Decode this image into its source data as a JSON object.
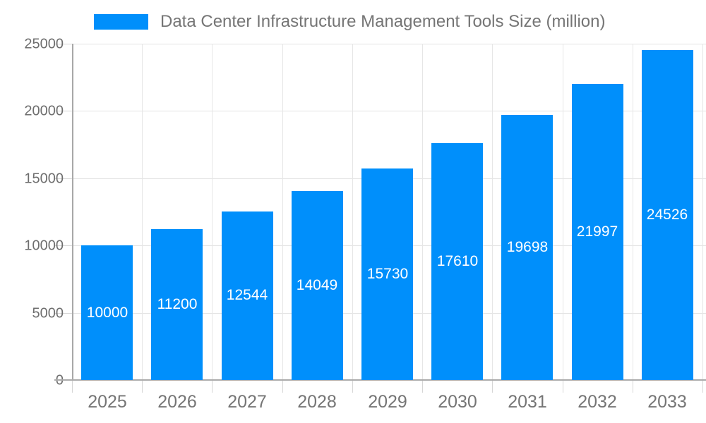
{
  "legend": {
    "label": "Data Center Infrastructure Management Tools Size (million)"
  },
  "colors": {
    "bar": "#008FFB",
    "bar_label_text": "#ffffff",
    "legend_text": "#757575",
    "axis_label_text": "#6e6e6e",
    "gridline": "#e3e3e3",
    "axis_line": "#aaaaaa",
    "background": "#ffffff"
  },
  "chart_data": {
    "type": "bar",
    "title": "",
    "xlabel": "",
    "ylabel": "",
    "legend_position": "top",
    "grid": true,
    "categories": [
      "2025",
      "2026",
      "2027",
      "2028",
      "2029",
      "2030",
      "2031",
      "2032",
      "2033"
    ],
    "series": [
      {
        "name": "Data Center Infrastructure Management Tools Size (million)",
        "values": [
          10000,
          11200,
          12544,
          14049,
          15730,
          17610,
          19698,
          21997,
          24526
        ],
        "color": "#008FFB"
      }
    ],
    "data_labels": [
      "10000",
      "11200",
      "12544",
      "14049",
      "15730",
      "17610",
      "19698",
      "21997",
      "24526"
    ],
    "ylim": [
      0,
      25000
    ],
    "yticks": [
      0,
      5000,
      10000,
      15000,
      20000,
      25000
    ],
    "ytick_labels": [
      "0",
      "5000",
      "10000",
      "15000",
      "20000",
      "25000"
    ]
  }
}
